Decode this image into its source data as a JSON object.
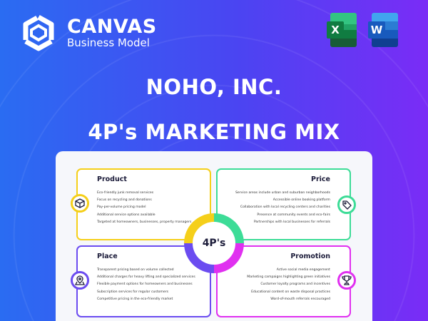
{
  "brand": {
    "name": "CANVAS",
    "tagline": "Business Model"
  },
  "apps": [
    {
      "name": "excel-icon",
      "letter": "X",
      "color": "#1d7044"
    },
    {
      "name": "word-icon",
      "letter": "W",
      "color": "#185abd"
    }
  ],
  "title": "NOHO, INC.",
  "subtitle": "4P's MARKETING MIX",
  "center_label": "4P's",
  "colors": {
    "product": "#f5cf1a",
    "price": "#3ddc97",
    "place": "#6b4cf0",
    "promotion": "#e030f0"
  },
  "quadrants": {
    "product": {
      "title": "Product",
      "icon": "box-icon",
      "items": [
        "Eco-friendly junk removal services",
        "Focus on recycling and donations",
        "Pay-per-volume pricing model",
        "Additional service options available",
        "Targeted at homeowners, businesses, property managers"
      ]
    },
    "price": {
      "title": "Price",
      "icon": "price-tag-icon",
      "items": [
        "Service areas include urban and suburban neighborhoods",
        "Accessible online booking platform",
        "Collaboration with local recycling centers and charities",
        "Presence at community events and eco-fairs",
        "Partnerships with local businesses for referrals"
      ]
    },
    "place": {
      "title": "Place",
      "icon": "map-pin-icon",
      "items": [
        "Transparent pricing based on volume collected",
        "Additional charges for heavy lifting and specialized services",
        "Flexible payment options for homeowners and businesses",
        "Subscription services for regular customers",
        "Competitive pricing in the eco-friendly market"
      ]
    },
    "promotion": {
      "title": "Promotion",
      "icon": "trophy-icon",
      "items": [
        "Active social media engagement",
        "Marketing campaigns highlighting green initiatives",
        "Customer loyalty programs and incentives",
        "Educational content on waste disposal practices",
        "Word-of-mouth referrals encouraged"
      ]
    }
  }
}
